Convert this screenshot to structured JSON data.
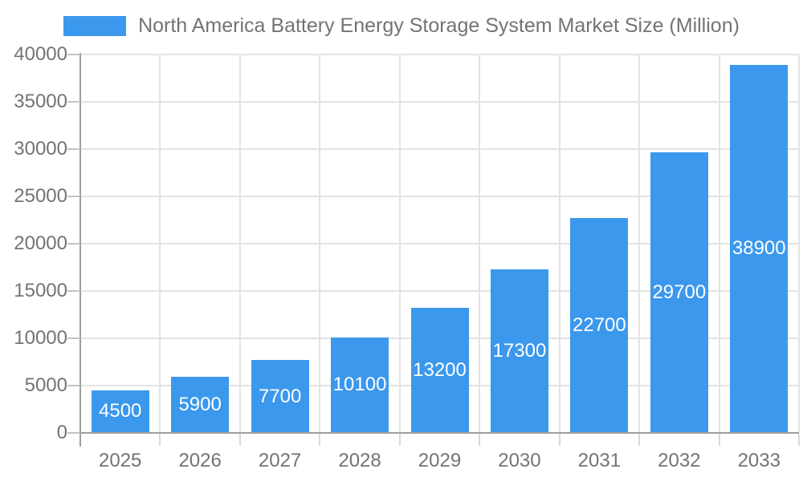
{
  "legend": {
    "series_label": "North America Battery Energy Storage System Market Size (Million)"
  },
  "chart_data": {
    "type": "bar",
    "title": "North America Battery Energy Storage System Market Size (Million)",
    "categories": [
      "2025",
      "2026",
      "2027",
      "2028",
      "2029",
      "2030",
      "2031",
      "2032",
      "2033"
    ],
    "values": [
      4500,
      5900,
      7700,
      10100,
      13200,
      17300,
      22700,
      29700,
      38900
    ],
    "xlabel": "",
    "ylabel": "",
    "ylim": [
      0,
      40000
    ],
    "yticks": [
      0,
      5000,
      10000,
      15000,
      20000,
      25000,
      30000,
      35000,
      40000
    ],
    "grid": "both",
    "legend_position": "top-center",
    "value_label_position": "inside-center",
    "colors": {
      "bar": "#3b98ec",
      "value_label": "#ffffff",
      "axis_text": "#737373",
      "grid_line": "#e3e3e3",
      "axis_line": "#9e9e9e",
      "background": "#ffffff"
    }
  }
}
